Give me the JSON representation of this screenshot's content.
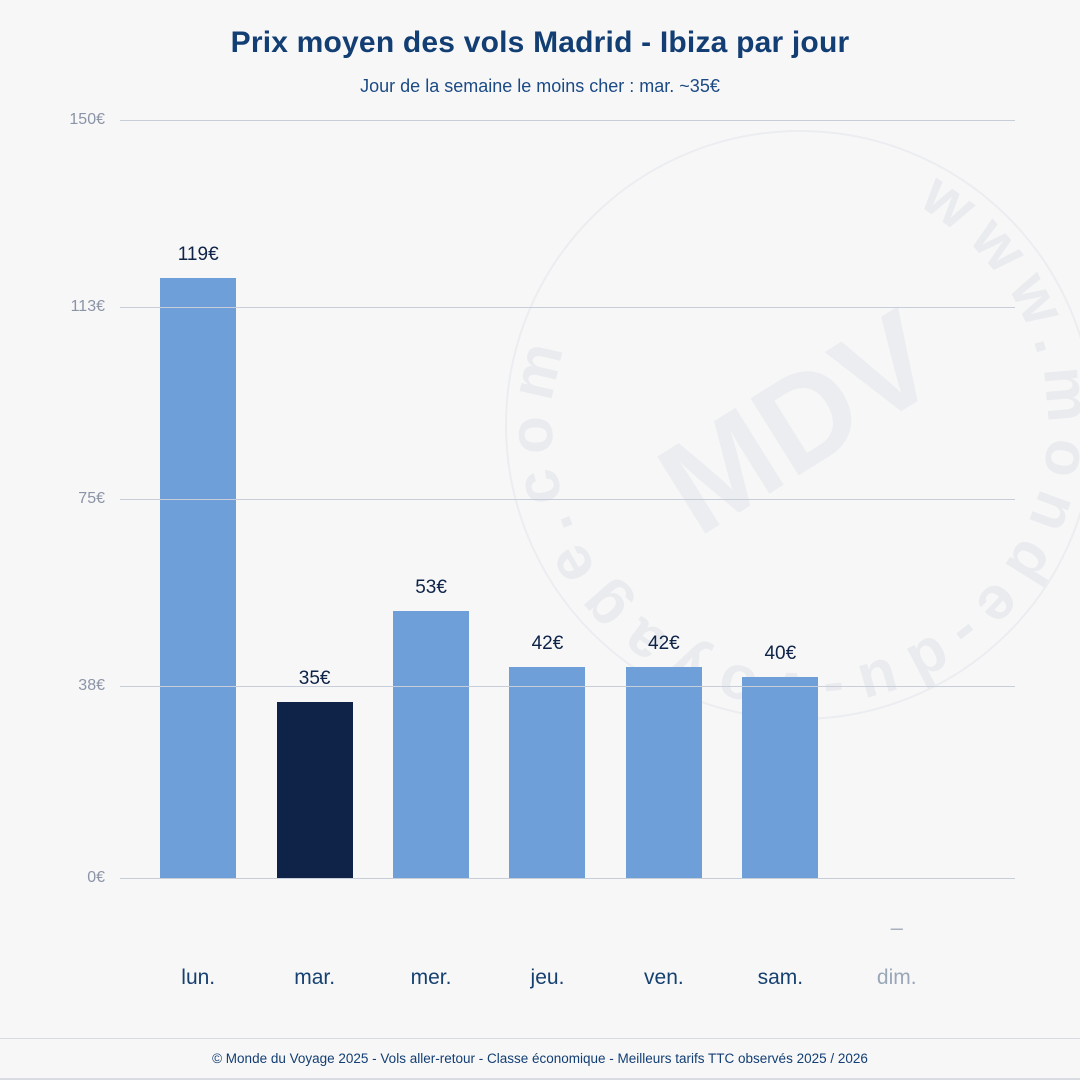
{
  "title": "Prix moyen des vols Madrid - Ibiza par jour",
  "subtitle": "Jour de la semaine le moins cher : mar. ~35€",
  "footer": "© Monde du Voyage 2025 - Vols aller-retour - Classe économique - Meilleurs tarifs TTC observés 2025 / 2026",
  "watermark": {
    "circle_text": "www.monde-du-voyage.com",
    "center_text": "MDV"
  },
  "colors": {
    "bar": "#6f9fd9",
    "bar_highlight": "#0e2347",
    "title": "#123e73",
    "axis_label": "#8b94a6",
    "gridline": "#c7cdd9",
    "muted_day": "#9aa7b7"
  },
  "chart_data": {
    "type": "bar",
    "title": "Prix moyen des vols Madrid - Ibiza par jour",
    "categories": [
      "lun.",
      "mar.",
      "mer.",
      "jeu.",
      "ven.",
      "sam.",
      "dim."
    ],
    "values": [
      119,
      35,
      53,
      42,
      42,
      40,
      null
    ],
    "value_labels": [
      "119€",
      "35€",
      "53€",
      "42€",
      "42€",
      "40€",
      ""
    ],
    "missing_marker": "–",
    "highlight_index": 1,
    "highlight_reason": "cheapest day",
    "xlabel": "",
    "ylabel": "",
    "ylim": [
      0,
      150
    ],
    "yticks": [
      0,
      38,
      75,
      113,
      150
    ],
    "ytick_labels": [
      "0€",
      "38€",
      "75€",
      "113€",
      "150€"
    ],
    "grid": true,
    "legend": false
  }
}
